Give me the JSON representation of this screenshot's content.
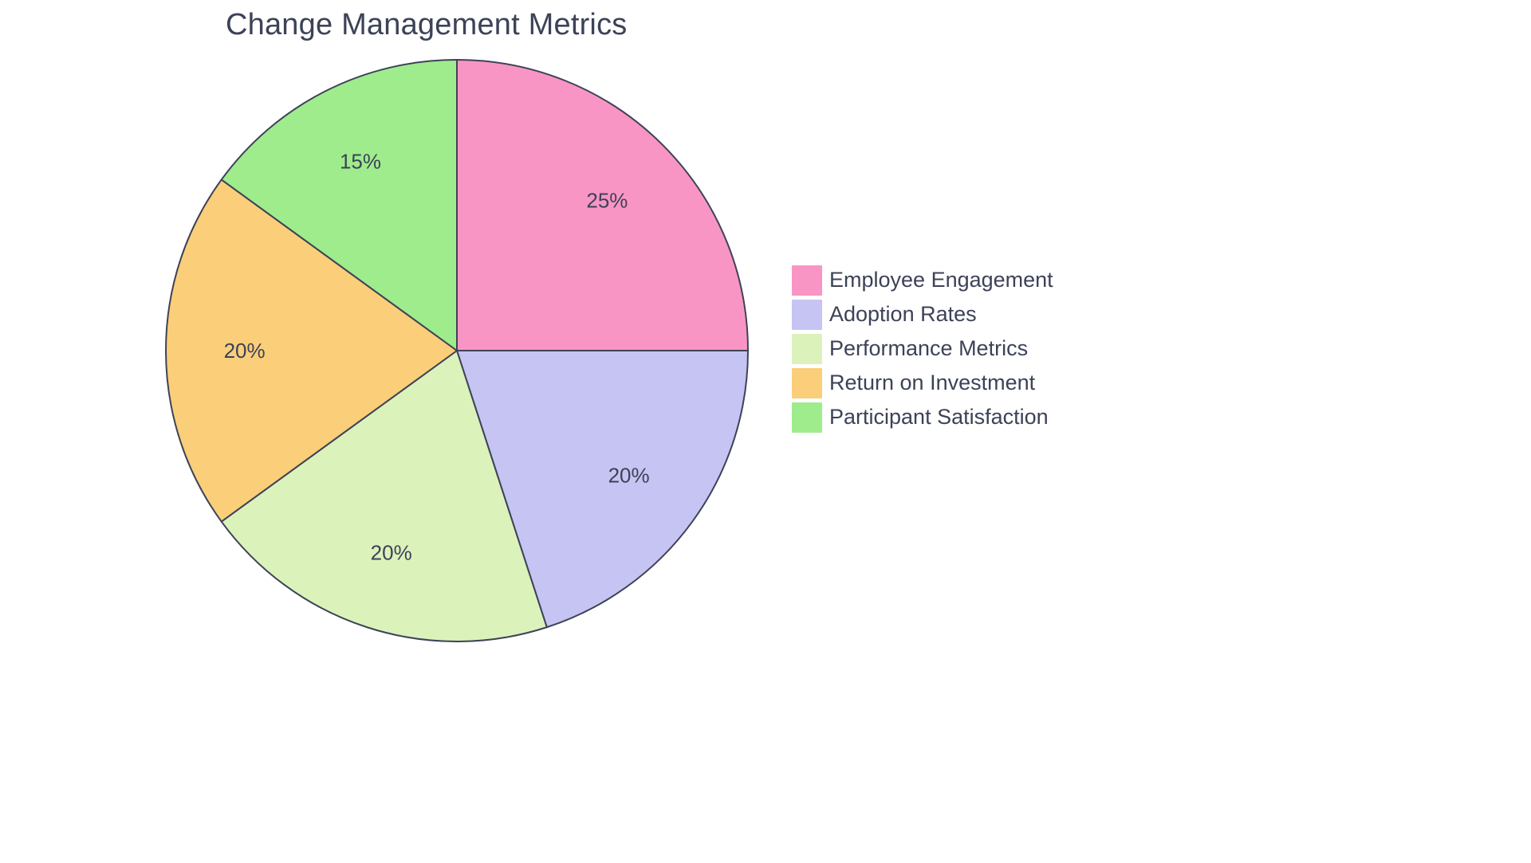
{
  "title": "Change Management Metrics",
  "chart_data": {
    "type": "pie",
    "title": "Change Management Metrics",
    "labels": [
      "Employee Engagement",
      "Adoption Rates",
      "Performance Metrics",
      "Return on Investment",
      "Participant Satisfaction"
    ],
    "values": [
      25,
      20,
      20,
      20,
      15
    ],
    "percent_labels": [
      "25%",
      "20%",
      "20%",
      "20%",
      "15%"
    ],
    "colors": [
      "#F995C5",
      "#C6C4F2",
      "#DCF2BB",
      "#FBCE79",
      "#9FEC8D"
    ],
    "stroke_color": "#3D4357",
    "text_color": "#3C4257",
    "legend_position": "right",
    "start_angle_deg": -90,
    "direction": "clockwise"
  }
}
